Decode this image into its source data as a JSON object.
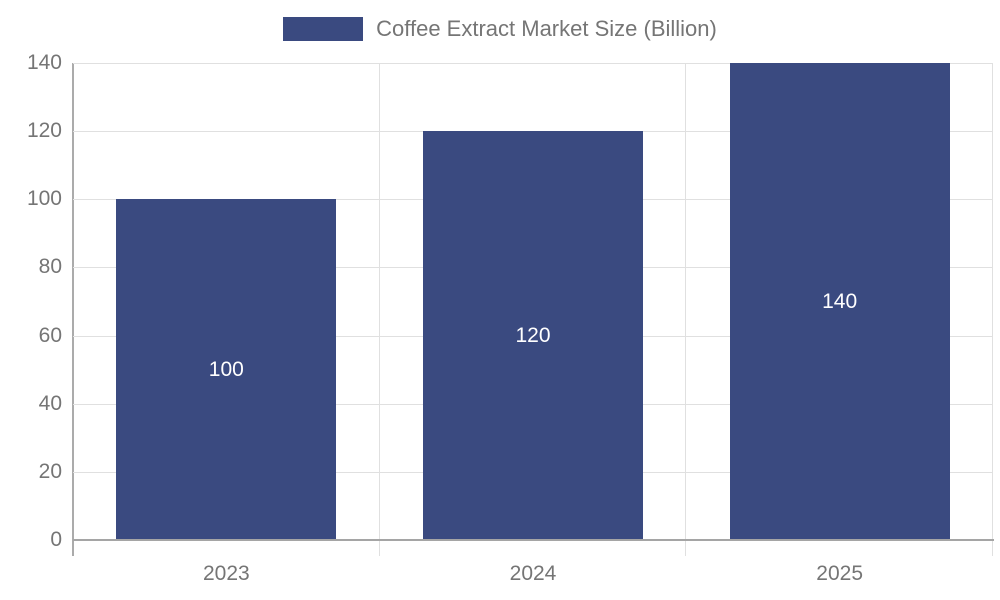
{
  "chart_data": {
    "type": "bar",
    "title": "Coffee Extract Market Size (Billion)",
    "categories": [
      "2023",
      "2024",
      "2025"
    ],
    "series": [
      {
        "name": "Coffee Extract Market Size (Billion)",
        "values": [
          100,
          120,
          140
        ]
      }
    ],
    "data_labels": [
      "100",
      "120",
      "140"
    ],
    "xlabel": "",
    "ylabel": "",
    "yticks": [
      0,
      20,
      40,
      60,
      80,
      100,
      120,
      140
    ],
    "ylim": [
      0,
      140
    ],
    "grid": true,
    "legend_position": "top",
    "colors": {
      "bar": "#3a4a80",
      "grid": "#e0e0e0",
      "axis": "#a5a5a5",
      "tick_text": "#757575",
      "title_text": "#757575",
      "data_label": "#ffffff",
      "background": "#ffffff"
    }
  }
}
